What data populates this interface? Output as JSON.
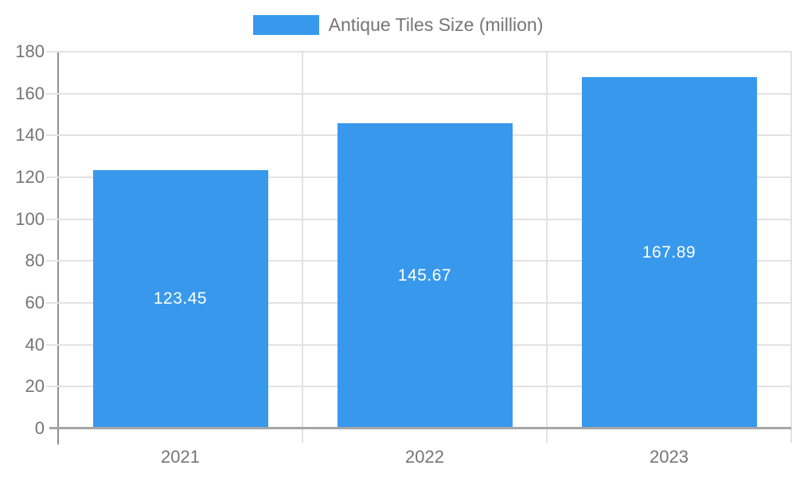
{
  "chart_data": {
    "type": "bar",
    "title": "",
    "categories": [
      "2021",
      "2022",
      "2023"
    ],
    "series": [
      {
        "name": "Antique Tiles Size (million)",
        "values": [
          123.45,
          145.67,
          167.89
        ],
        "labels": [
          "123.45",
          "145.67",
          "167.89"
        ]
      }
    ],
    "xlabel": "",
    "ylabel": "",
    "ylim": [
      0,
      180
    ],
    "ytick_step": 20,
    "yticks": [
      0,
      20,
      40,
      60,
      80,
      100,
      120,
      140,
      160,
      180
    ],
    "grid": true,
    "legend_position": "top-center",
    "value_labels_inside_bars": true,
    "colors": {
      "bar": "#3899EC",
      "bar_label_text": "#ffffff",
      "axis_text": "#757575",
      "gridline": "#e2e2e2",
      "y_axis_line": "#8f8f8f",
      "x_axis_line": "#a6a6a6"
    }
  }
}
